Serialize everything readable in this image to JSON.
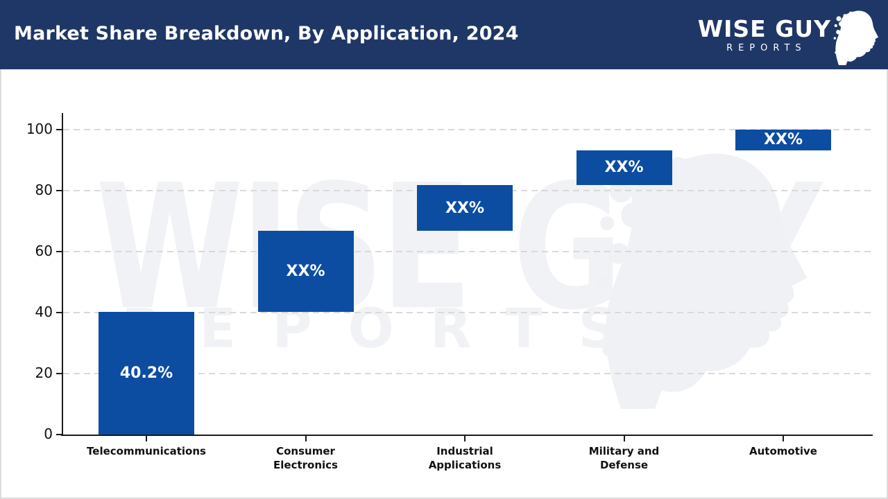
{
  "header": {
    "title": "Market Share Breakdown, By Application, 2024",
    "logo": {
      "line1": "WISE GUY",
      "line2": "REPORTS"
    }
  },
  "watermark": {
    "line1": "WISE GUY",
    "line2": "REPORTS"
  },
  "colors": {
    "header_bg": "#1F3766",
    "bar": "#0C4DA2",
    "grid": "#D9D9D9",
    "axis": "#1A1A1A",
    "watermark": "#F1F2F5"
  },
  "chart_data": {
    "type": "bar",
    "subtype": "waterfall",
    "title": "Market Share Breakdown, By Application, 2024",
    "categories": [
      "Telecommunications",
      "Consumer Electronics",
      "Industrial Applications",
      "Military and Defense",
      "Automotive"
    ],
    "category_label_lines": [
      [
        "Telecommunications"
      ],
      [
        "Consumer",
        "Electronics"
      ],
      [
        "Industrial",
        "Applications"
      ],
      [
        "Military and",
        "Defense"
      ],
      [
        "Automotive"
      ]
    ],
    "segments": [
      {
        "category": "Telecommunications",
        "start": 0,
        "end": 40.2,
        "value_label": "40.2%"
      },
      {
        "category": "Consumer Electronics",
        "start": 40.2,
        "end": 66.8,
        "value_label": "XX%"
      },
      {
        "category": "Industrial Applications",
        "start": 66.8,
        "end": 81.8,
        "value_label": "XX%"
      },
      {
        "category": "Military and Defense",
        "start": 81.8,
        "end": 93.2,
        "value_label": "XX%"
      },
      {
        "category": "Automotive",
        "start": 93.2,
        "end": 100,
        "value_label": "XX%"
      }
    ],
    "y_ticks": [
      0,
      20,
      40,
      60,
      80,
      100
    ],
    "ylim": [
      0,
      100
    ],
    "xlabel": "",
    "ylabel": "",
    "grid": "horizontal-dashed",
    "legend_position": "none",
    "bar_color": "#0C4DA2"
  }
}
